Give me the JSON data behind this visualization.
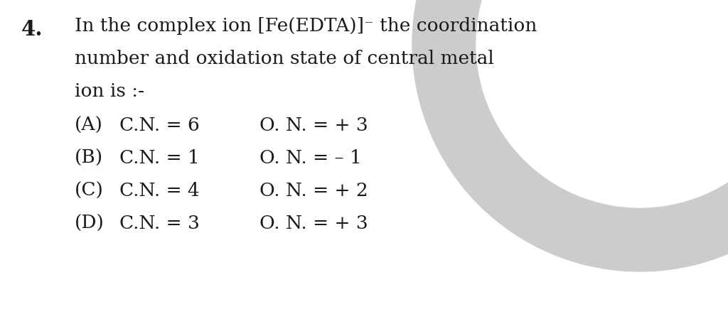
{
  "background_color": "#ffffff",
  "question_number": "4.",
  "question_line1": "In the complex ion [Fe(EDTA)]⁻ the coordination",
  "question_line2": "number and oxidation state of central metal",
  "question_line3": "ion is :-",
  "options": [
    {
      "label": "(A)",
      "cn": "C.N. = 6",
      "on": "O. N. = + 3"
    },
    {
      "label": "(B)",
      "cn": "C.N. = 1",
      "on": "O. N. = – 1"
    },
    {
      "label": "(C)",
      "cn": "C.N. = 4",
      "on": "O. N. = + 2"
    },
    {
      "label": "(D)",
      "cn": "C.N. = 3",
      "on": "O. N. = + 3"
    }
  ],
  "font_size_question": 19,
  "font_size_number": 21,
  "font_size_options": 19,
  "text_color": "#1a1a1a",
  "watermark_color": "#cccccc",
  "watermark_inner": "#ffffff",
  "fig_width": 10.24,
  "fig_height": 4.42,
  "dpi": 100
}
